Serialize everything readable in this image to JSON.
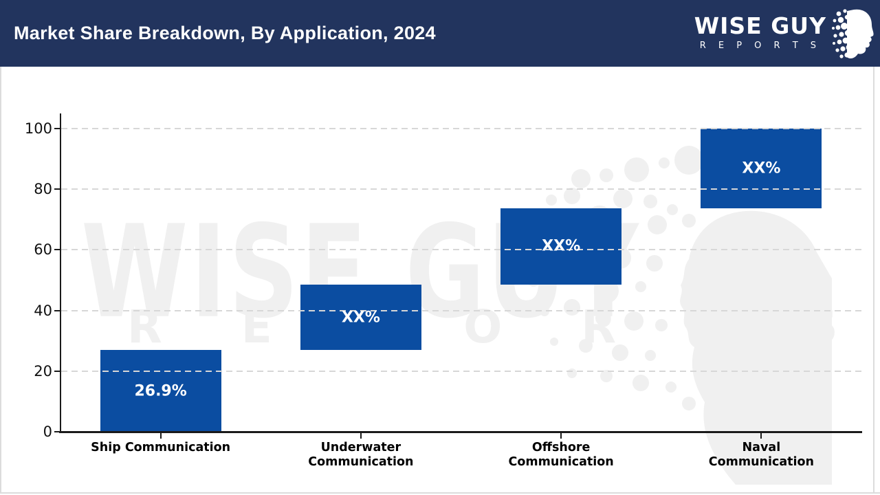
{
  "header": {
    "title": "Market Share Breakdown, By Application, 2024",
    "logo": {
      "brand": "WISE GUY",
      "sub": "R E P O R T S"
    }
  },
  "watermark": {
    "brand": "WISE GUY",
    "sub": "R E P O R T S"
  },
  "chart_data": {
    "type": "bar",
    "subtype": "waterfall-floating-segments",
    "title": "Market Share Breakdown, By Application, 2024",
    "categories": [
      "Ship Communication",
      "Underwater Communication",
      "Offshore Communication",
      "Naval Communication"
    ],
    "x_tick_label_lines": [
      [
        "Ship Communication"
      ],
      [
        "Underwater",
        "Communication"
      ],
      [
        "Offshore",
        "Communication"
      ],
      [
        "Naval",
        "Communication"
      ]
    ],
    "segments": [
      {
        "category": "Ship Communication",
        "from": 0,
        "to": 26.9,
        "label": "26.9%"
      },
      {
        "category": "Underwater Communication",
        "from": 26.9,
        "to": 48.6,
        "label": "XX%"
      },
      {
        "category": "Offshore Communication",
        "from": 48.6,
        "to": 73.7,
        "label": "XX%"
      },
      {
        "category": "Naval Communication",
        "from": 73.7,
        "to": 100,
        "label": "XX%"
      }
    ],
    "xlabel": "",
    "ylabel": "",
    "ylim": [
      0,
      100
    ],
    "yticks": [
      0,
      20,
      40,
      60,
      80,
      100
    ],
    "grid": "horizontal-dashed",
    "legend": "none",
    "colors": {
      "bar": "#0B4DA1",
      "bar_label": "#FFFFFF",
      "grid": "#D7D7D7",
      "axis": "#1A1A1A",
      "header_bg": "#22345E",
      "watermark": "#F0F0F0"
    }
  }
}
